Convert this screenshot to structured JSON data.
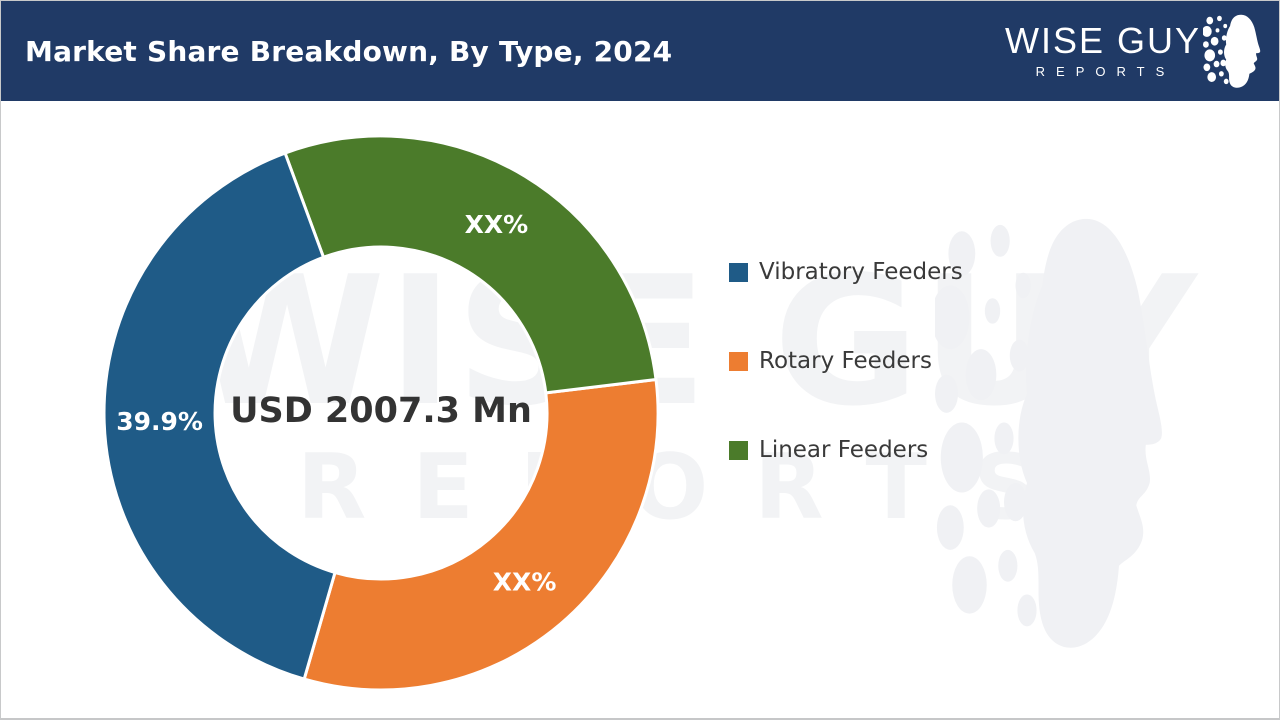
{
  "header": {
    "title": "Market Share Breakdown, By Type, 2024",
    "logo": {
      "line1": "WISE GUY",
      "line2": "REPORTS"
    }
  },
  "colors": {
    "header_bg": "#203a66",
    "vibratory_blue": "#1f5b87",
    "rotary_orange": "#ed7d31",
    "linear_green": "#4b7b2a",
    "center_text": "#333333",
    "segment_label_text": "#ffffff",
    "watermark": "#f2f3f5"
  },
  "chart_data": {
    "type": "pie",
    "subtype": "donut",
    "title": "Market Share Breakdown, By Type, 2024",
    "center_label": "USD 2007.3 Mn",
    "donut_hole_ratio": 0.6,
    "start_angle_deg": 196.1,
    "legend_position": "right",
    "segments": [
      {
        "name": "Vibratory Feeders",
        "label": "39.9%",
        "value_pct": 39.9,
        "color": "#1f5b87"
      },
      {
        "name": "Linear Feeders",
        "label": "XX%",
        "value_pct": 28.7,
        "color": "#4b7b2a"
      },
      {
        "name": "Rotary Feeders",
        "label": "XX%",
        "value_pct": 31.4,
        "color": "#ed7d31"
      }
    ]
  },
  "legend": {
    "items": [
      {
        "label": "Vibratory Feeders",
        "color": "#1f5b87"
      },
      {
        "label": "Rotary Feeders",
        "color": "#ed7d31"
      },
      {
        "label": "Linear Feeders",
        "color": "#4b7b2a"
      }
    ]
  },
  "watermark": {
    "line1": "WISE GUY",
    "line2": "REPORTS"
  }
}
